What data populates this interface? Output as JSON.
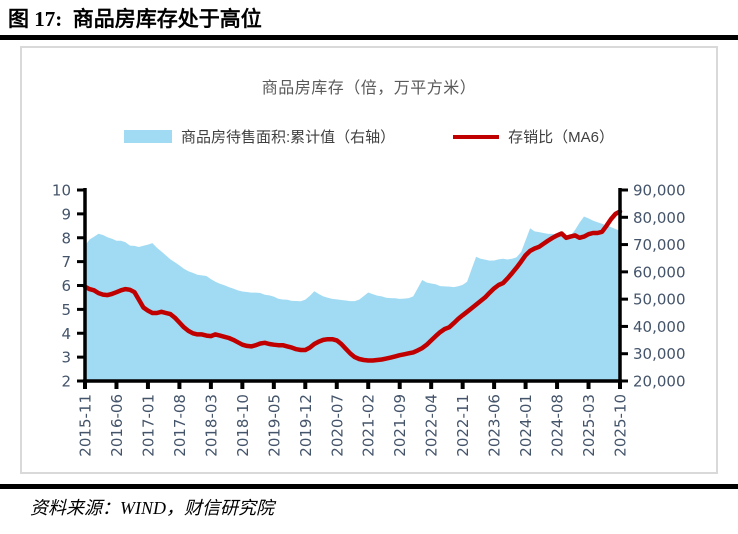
{
  "figure": {
    "title": "图 17:  商品房库存处于高位"
  },
  "source": {
    "text": "资料来源：WIND，财信研究院"
  },
  "chart_data": {
    "type": "combo",
    "title": "商品房库存（倍，万平方米）",
    "legend_position": "top-center",
    "grid": false,
    "x_axis": {
      "start": "2015-11",
      "end": "2025-10",
      "frequency": "monthly",
      "tick_interval_months": 7,
      "tick_labels": [
        "2015-11",
        "2016-06",
        "2017-01",
        "2017-08",
        "2018-03",
        "2018-10",
        "2019-05",
        "2019-12",
        "2020-07",
        "2021-02",
        "2021-09",
        "2022-04",
        "2022-11",
        "2023-06",
        "2024-01",
        "2024-08",
        "2025-03",
        "2025-10"
      ]
    },
    "left_axis": {
      "min": 2,
      "max": 10,
      "step": 1,
      "tick_labels": [
        "10",
        "9",
        "8",
        "7",
        "6",
        "5",
        "4",
        "3",
        "2"
      ]
    },
    "right_axis": {
      "min": 20000,
      "max": 90000,
      "step": 10000,
      "tick_labels": [
        "90,000",
        "80,000",
        "70,000",
        "60,000",
        "50,000",
        "40,000",
        "30,000",
        "20,000"
      ]
    },
    "colors": {
      "area": "#A1DBF3",
      "line": "#C00000",
      "axis_label": "#44546A",
      "chart_title": "#595959",
      "legend_text": "#404040",
      "box_border": "#D9D9D9",
      "rule": "#000000"
    },
    "series": [
      {
        "name": "商品房待售面积:累计值（右轴）",
        "type": "area",
        "axis": "right",
        "color": "#A1DBF3",
        "values": [
          69637,
          71853,
          72900,
          73931,
          73516,
          72690,
          72169,
          71416,
          71382,
          70870,
          69612,
          69522,
          69095,
          69539,
          70000,
          70555,
          68810,
          67469,
          66018,
          64577,
          63496,
          62352,
          61140,
          60258,
          59606,
          58923,
          58700,
          58468,
          57329,
          56393,
          55623,
          55083,
          54428,
          53873,
          53191,
          52789,
          52627,
          52414,
          52400,
          52251,
          51646,
          51380,
          50928,
          50162,
          49876,
          49784,
          49346,
          49323,
          49221,
          49821,
          51200,
          52900,
          51900,
          51000,
          50500,
          50100,
          49900,
          49700,
          49500,
          49300,
          49287,
          49850,
          51100,
          52425,
          51835,
          51300,
          51000,
          50500,
          50400,
          50300,
          50100,
          50200,
          50400,
          51023,
          54000,
          57026,
          56113,
          55735,
          55433,
          54784,
          54655,
          54605,
          54426,
          54734,
          55203,
          56366,
          61000,
          65528,
          64770,
          64487,
          64120,
          64159,
          64564,
          64795,
          64537,
          64835,
          65385,
          67295,
          71600,
          75969,
          74833,
          74553,
          74256,
          73894,
          73926,
          73783,
          73177,
          72909,
          73286,
          75327,
          78000,
          80300,
          79600,
          78800,
          78200,
          77600,
          77000,
          76400,
          75700,
          75000
        ]
      },
      {
        "name": "存销比（MA6）",
        "type": "line",
        "axis": "left",
        "color": "#C00000",
        "values": [
          5.95,
          5.85,
          5.8,
          5.68,
          5.62,
          5.6,
          5.65,
          5.72,
          5.8,
          5.85,
          5.82,
          5.72,
          5.4,
          5.08,
          4.95,
          4.85,
          4.85,
          4.9,
          4.85,
          4.8,
          4.65,
          4.45,
          4.25,
          4.1,
          4.0,
          3.95,
          3.95,
          3.9,
          3.88,
          3.95,
          3.9,
          3.85,
          3.8,
          3.72,
          3.62,
          3.52,
          3.47,
          3.45,
          3.5,
          3.57,
          3.6,
          3.55,
          3.52,
          3.5,
          3.5,
          3.45,
          3.4,
          3.33,
          3.3,
          3.3,
          3.4,
          3.55,
          3.65,
          3.72,
          3.75,
          3.75,
          3.7,
          3.55,
          3.35,
          3.15,
          3.0,
          2.92,
          2.88,
          2.86,
          2.86,
          2.88,
          2.9,
          2.94,
          2.98,
          3.03,
          3.08,
          3.12,
          3.16,
          3.2,
          3.28,
          3.38,
          3.52,
          3.7,
          3.88,
          4.05,
          4.18,
          4.25,
          4.42,
          4.6,
          4.75,
          4.9,
          5.05,
          5.2,
          5.35,
          5.5,
          5.7,
          5.88,
          6.02,
          6.1,
          6.3,
          6.52,
          6.75,
          7.0,
          7.27,
          7.45,
          7.55,
          7.62,
          7.75,
          7.88,
          8.0,
          8.1,
          8.18,
          8.0,
          8.05,
          8.1,
          8.0,
          8.05,
          8.15,
          8.2,
          8.2,
          8.25,
          8.5,
          8.78,
          9.0,
          9.1
        ]
      }
    ]
  }
}
